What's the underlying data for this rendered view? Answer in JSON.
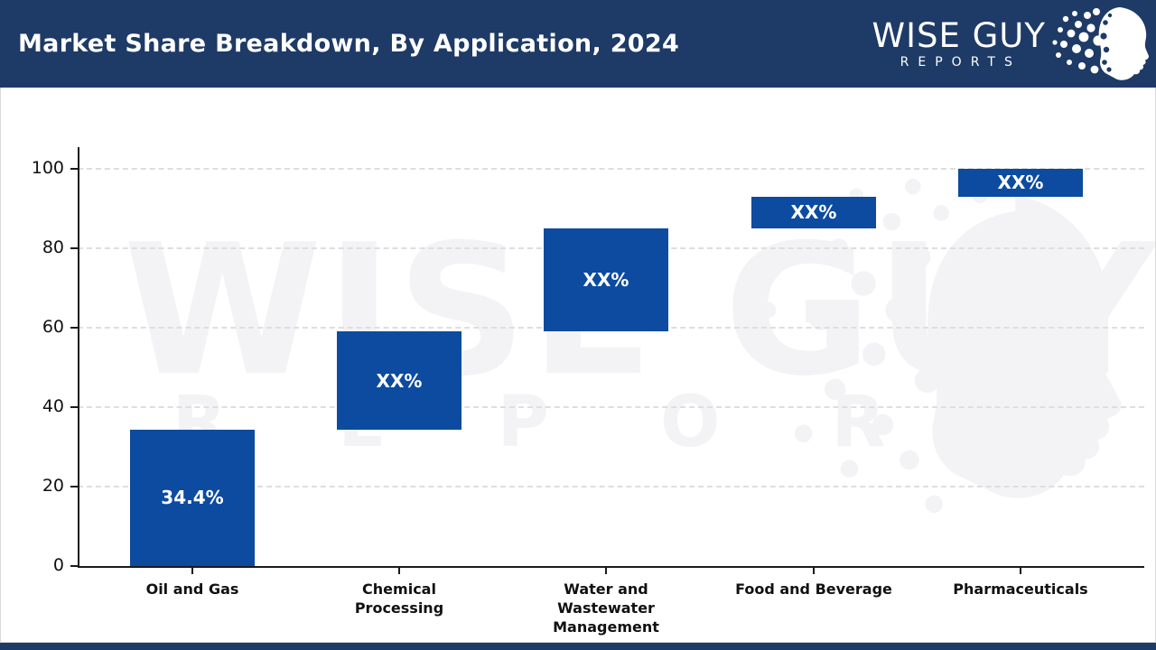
{
  "header": {
    "title": "Market Share Breakdown, By Application, 2024",
    "logo": {
      "line1": "WISE GUY",
      "line2": "REPORTS"
    }
  },
  "watermark": {
    "line1": "WISE GUY",
    "line2": "REPORTS"
  },
  "colors": {
    "header_bg": "#1e3a66",
    "bar": "#0c4ba0",
    "grid": "#dedede",
    "watermark": "#f3f3f6",
    "axis": "#1a1a1a",
    "bar_label": "#ffffff"
  },
  "chart_data": {
    "type": "bar",
    "subtype": "waterfall",
    "title": "Market Share Breakdown, By Application, 2024",
    "categories": [
      "Oil and Gas",
      "Chemical Processing",
      "Water and Wastewater Management",
      "Food and Beverage",
      "Pharmaceuticals"
    ],
    "category_label_lines": [
      [
        "Oil and Gas"
      ],
      [
        "Chemical",
        "Processing"
      ],
      [
        "Water and",
        "Wastewater",
        "Management"
      ],
      [
        "Food and Beverage"
      ],
      [
        "Pharmaceuticals"
      ]
    ],
    "segments": [
      {
        "category": "Oil and Gas",
        "start": 0,
        "end": 34.4,
        "size": 34.4,
        "label": "34.4%"
      },
      {
        "category": "Chemical Processing",
        "start": 34.4,
        "end": 59,
        "size": 24.6,
        "label": "XX%"
      },
      {
        "category": "Water and Wastewater Management",
        "start": 59,
        "end": 85,
        "size": 26,
        "label": "XX%"
      },
      {
        "category": "Food and Beverage",
        "start": 85,
        "end": 93,
        "size": 8,
        "label": "XX%"
      },
      {
        "category": "Pharmaceuticals",
        "start": 93,
        "end": 100,
        "size": 7,
        "label": "XX%"
      }
    ],
    "xlabel": "",
    "ylabel": "",
    "ylim": [
      0,
      100
    ],
    "yticks": [
      0,
      20,
      40,
      60,
      80,
      100
    ],
    "grid": "horizontal-dashed",
    "legend": "none",
    "units": "percent"
  }
}
